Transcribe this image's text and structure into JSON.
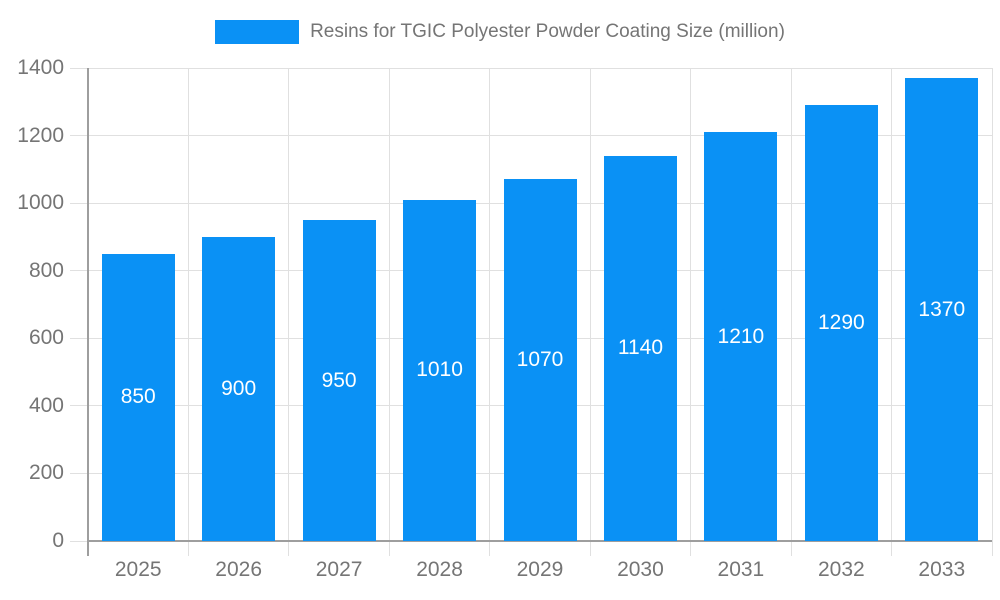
{
  "chart_data": {
    "type": "bar",
    "title": "Resins for TGIC Polyester Powder Coating Size (million)",
    "categories": [
      "2025",
      "2026",
      "2027",
      "2028",
      "2029",
      "2030",
      "2031",
      "2032",
      "2033"
    ],
    "values": [
      850,
      900,
      950,
      1010,
      1070,
      1140,
      1210,
      1290,
      1370
    ],
    "xlabel": "",
    "ylabel": "",
    "ylim": [
      0,
      1400
    ],
    "yticks": [
      0,
      200,
      400,
      600,
      800,
      1000,
      1200,
      1400
    ],
    "grid": true,
    "legend_position": "top-center",
    "colors": {
      "bar": "#0a91f5",
      "bar_label_text": "#ffffff",
      "axis_text": "#757575",
      "legend_text": "#757575",
      "gridline": "#e0e0e0",
      "axis_line": "#9e9e9e",
      "background": "#ffffff"
    }
  }
}
